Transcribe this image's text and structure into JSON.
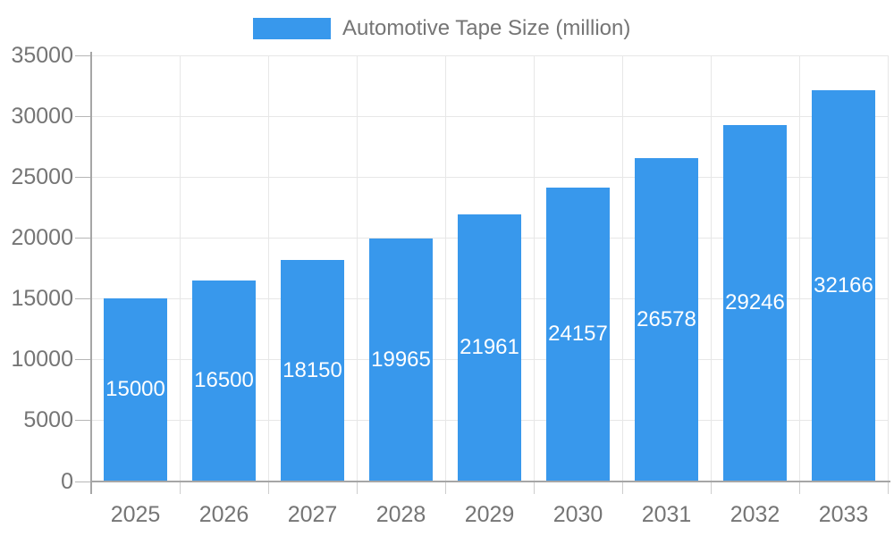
{
  "chart_data": {
    "type": "bar",
    "title": "Automotive Tape Size (million)",
    "categories": [
      "2025",
      "2026",
      "2027",
      "2028",
      "2029",
      "2030",
      "2031",
      "2032",
      "2033"
    ],
    "series": [
      {
        "name": "Automotive Tape Size (million)",
        "values": [
          15000,
          16500,
          18150,
          19965,
          21961,
          24157,
          26578,
          29246,
          32166
        ]
      }
    ],
    "value_labels": [
      "15000",
      "16500",
      "18150",
      "19965",
      "21961",
      "24157",
      "26578",
      "29246",
      "32166"
    ],
    "xlabel": "",
    "ylabel": "",
    "ylim": [
      0,
      35000
    ],
    "yticks": [
      0,
      5000,
      10000,
      15000,
      20000,
      25000,
      30000,
      35000
    ],
    "grid": true,
    "legend_position": "top",
    "colors": {
      "bar": "#3898ec",
      "value_label": "#ffffff",
      "axis_text": "#757575",
      "grid": "#e7e7e7",
      "axis_line": "#a6a6a6",
      "y_tick": "#b6b6b6",
      "x_tick": "#cdcdcd"
    }
  }
}
